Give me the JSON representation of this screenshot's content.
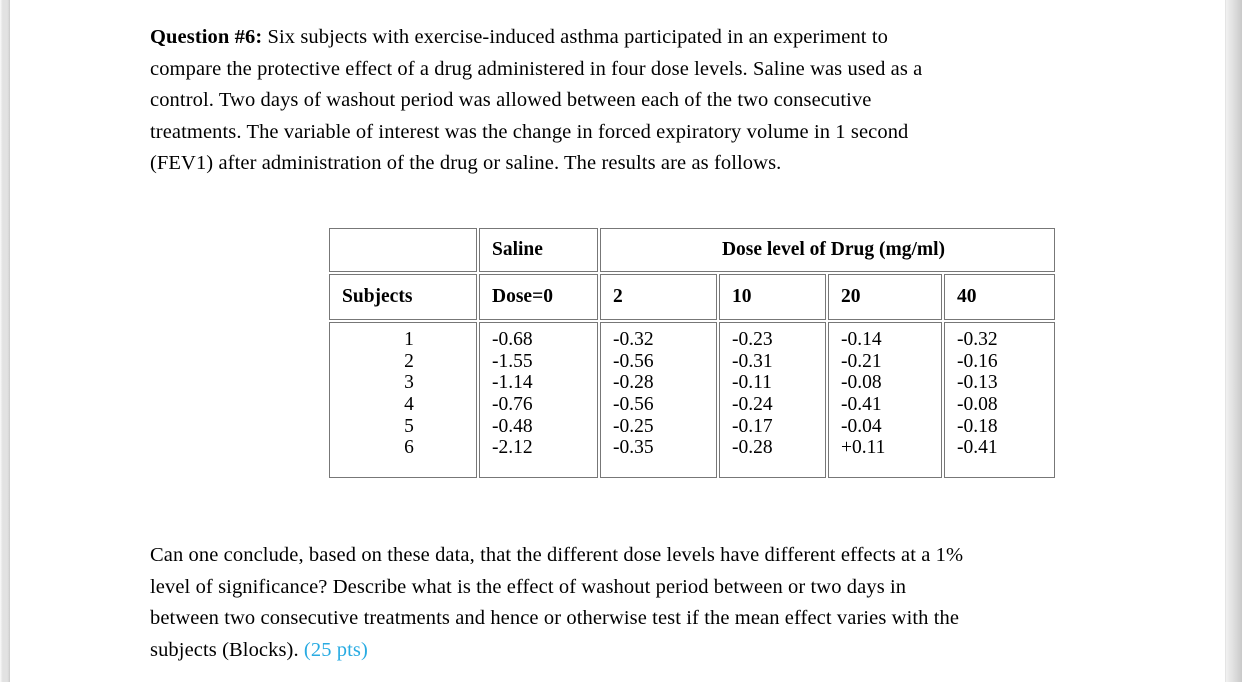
{
  "page": {
    "background_color": "#ffffff",
    "accent_color": "#29abe2",
    "table_border_color": "#777777"
  },
  "question": {
    "bold_label": "Question #6:",
    "lines": [
      " Six subjects with exercise-induced asthma participated in an experiment to",
      "compare the protective effect of a drug administered in four dose levels. Saline was used as a",
      "control. Two days of washout period was allowed between each of the two consecutive",
      "treatments. The variable of interest was the change in forced expiratory volume in 1 second",
      "(FEV1) after administration of the drug or saline. The results are as follows."
    ]
  },
  "table": {
    "header_saline": "Saline",
    "header_drug": "Dose level of Drug (mg/ml)",
    "subheader": [
      "Subjects",
      "Dose=0",
      "2",
      "10",
      "20",
      "40"
    ],
    "columns": {
      "subjects": [
        "1",
        "2",
        "3",
        "4",
        "5",
        "6"
      ],
      "saline_dose0": [
        "-0.68",
        "-1.55",
        "-1.14",
        "-0.76",
        "-0.48",
        "-2.12"
      ],
      "dose_2": [
        "-0.32",
        "-0.56",
        "-0.28",
        "-0.56",
        "-0.25",
        "-0.35"
      ],
      "dose_10": [
        "-0.23",
        "-0.31",
        "-0.11",
        "-0.24",
        "-0.17",
        "-0.28"
      ],
      "dose_20": [
        "-0.14",
        "-0.21",
        "-0.08",
        "-0.41",
        "-0.04",
        "+0.11"
      ],
      "dose_40": [
        "-0.32",
        "-0.16",
        "-0.13",
        "-0.08",
        "-0.18",
        "-0.41"
      ]
    }
  },
  "closing": {
    "lines": [
      "Can one conclude, based on these data, that the different dose levels have different effects at a 1%",
      "level of significance? Describe what is the effect of washout period between or two days in",
      "between two consecutive treatments and hence or otherwise test if the mean effect varies with the"
    ],
    "last_line_prefix": "subjects (Blocks). ",
    "pts_label": "(25 pts)",
    "pts_color": "#29abe2"
  }
}
